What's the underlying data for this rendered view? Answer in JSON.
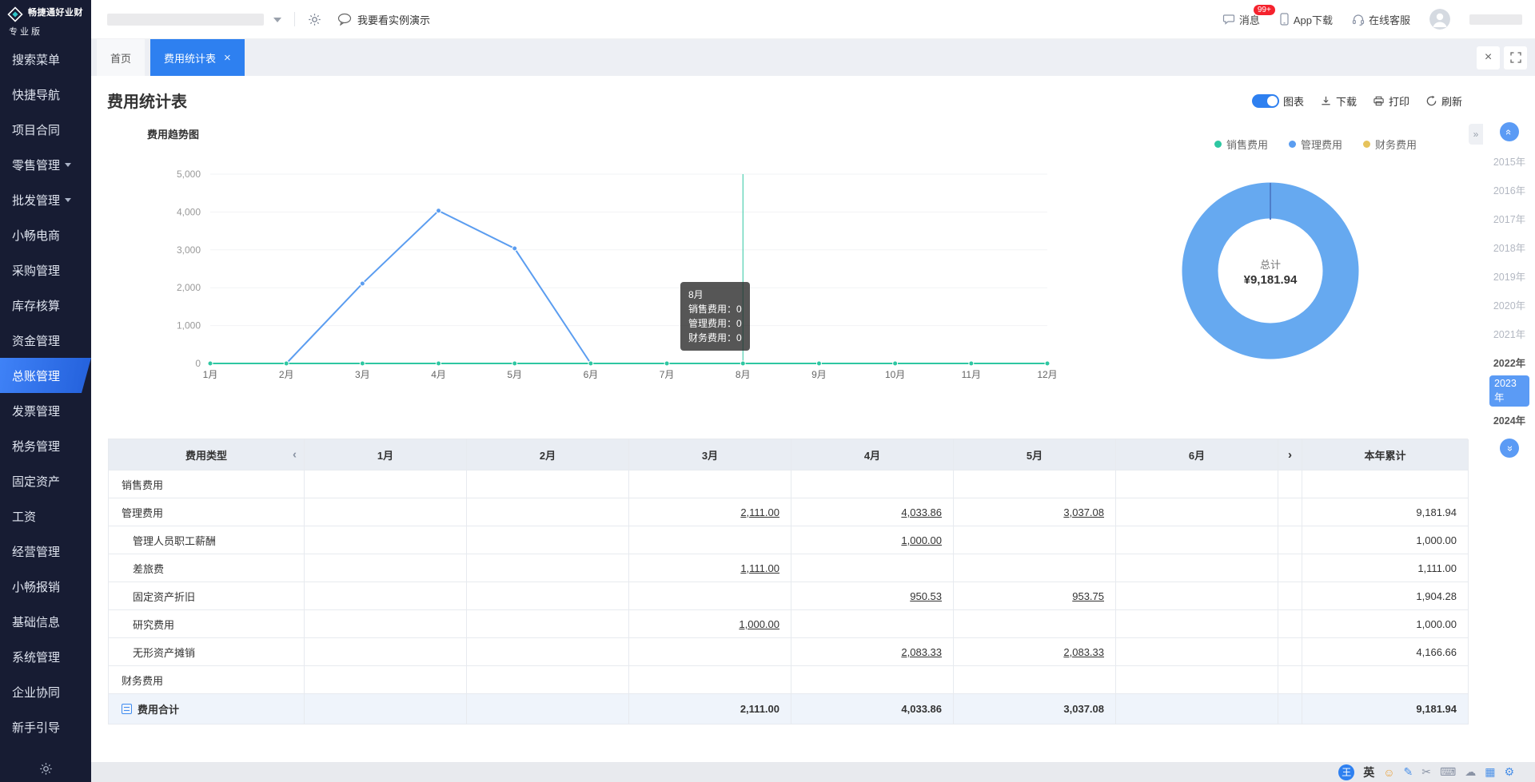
{
  "brand": {
    "name": "畅捷通好业财",
    "edition": "专业版"
  },
  "colors": {
    "accent": "#2E80F0",
    "sidebar_bg": "#171C33",
    "sidebar_active": "#2E6BE5",
    "series_green": "#2EC7A2",
    "series_blue": "#5B9DF0",
    "series_yellow": "#E6C35C",
    "donut_blue": "#66A9F0",
    "badge_red": "#F5222D",
    "year_active": "#5B9BF5"
  },
  "sidebar": {
    "items": [
      {
        "key": "search-menu",
        "label": "搜索菜单"
      },
      {
        "key": "quick-nav",
        "label": "快捷导航"
      },
      {
        "key": "project-contract",
        "label": "项目合同"
      },
      {
        "key": "retail",
        "label": "零售管理",
        "has_dropdown": true
      },
      {
        "key": "wholesale",
        "label": "批发管理",
        "has_dropdown": true
      },
      {
        "key": "ecommerce",
        "label": "小畅电商"
      },
      {
        "key": "purchase",
        "label": "采购管理"
      },
      {
        "key": "inventory",
        "label": "库存核算"
      },
      {
        "key": "funds",
        "label": "资金管理"
      },
      {
        "key": "general-ledger",
        "label": "总账管理",
        "active": true
      },
      {
        "key": "invoice",
        "label": "发票管理"
      },
      {
        "key": "tax",
        "label": "税务管理"
      },
      {
        "key": "fixed-assets",
        "label": "固定资产"
      },
      {
        "key": "payroll",
        "label": "工资"
      },
      {
        "key": "operations",
        "label": "经营管理"
      },
      {
        "key": "expense",
        "label": "小畅报销"
      },
      {
        "key": "base-info",
        "label": "基础信息"
      },
      {
        "key": "system",
        "label": "系统管理"
      },
      {
        "key": "collaboration",
        "label": "企业协同"
      },
      {
        "key": "guide",
        "label": "新手引导"
      }
    ]
  },
  "topbar": {
    "demo": "我要看实例演示",
    "messages": "消息",
    "badge": "99+",
    "app_download": "App下载",
    "online_support": "在线客服"
  },
  "tabs": {
    "home": "首页",
    "report": "费用统计表"
  },
  "report": {
    "title": "费用统计表"
  },
  "toolbar": {
    "chart_toggle": "图表",
    "download": "下载",
    "print": "打印",
    "refresh": "刷新"
  },
  "chart_data": [
    {
      "type": "line",
      "title": "费用趋势图",
      "x": [
        "1月",
        "2月",
        "3月",
        "4月",
        "5月",
        "6月",
        "7月",
        "8月",
        "9月",
        "10月",
        "11月",
        "12月"
      ],
      "ylim": [
        0,
        5000
      ],
      "yticks": [
        0,
        1000,
        2000,
        3000,
        4000,
        5000
      ],
      "legend_position": "top-right",
      "series": [
        {
          "key": "sales",
          "name": "销售费用",
          "color": "#2EC7A2",
          "values": [
            0,
            0,
            0,
            0,
            0,
            0,
            0,
            0,
            0,
            0,
            0,
            0
          ]
        },
        {
          "key": "admin",
          "name": "管理费用",
          "color": "#5B9DF0",
          "values": [
            null,
            0,
            2111.0,
            4033.86,
            3037.08,
            0,
            null,
            null,
            null,
            null,
            null,
            null
          ]
        },
        {
          "key": "finance",
          "name": "财务费用",
          "color": "#E6C35C",
          "values": [
            0,
            0,
            0,
            0,
            0,
            0,
            0,
            0,
            0,
            0,
            0,
            0
          ]
        }
      ],
      "tooltip": {
        "x_index": 7,
        "month": "8月",
        "lines": [
          "销售费用：0",
          "管理费用：0",
          "财务费用：0"
        ]
      }
    },
    {
      "type": "donut",
      "center_label": "总计",
      "center_value": "¥9,181.94",
      "series": [
        {
          "key": "admin",
          "name": "管理费用",
          "value": 9181.94,
          "color": "#66A9F0"
        }
      ]
    }
  ],
  "year_panel": {
    "years": [
      {
        "label": "2015年"
      },
      {
        "label": "2016年"
      },
      {
        "label": "2017年"
      },
      {
        "label": "2018年"
      },
      {
        "label": "2019年"
      },
      {
        "label": "2020年"
      },
      {
        "label": "2021年"
      },
      {
        "label": "2022年",
        "emphasis": true
      },
      {
        "label": "2023年",
        "active": true
      },
      {
        "label": "2024年",
        "emphasis": true
      }
    ]
  },
  "table": {
    "columns": [
      "费用类型",
      "1月",
      "2月",
      "3月",
      "4月",
      "5月",
      "6月",
      "本年累计"
    ],
    "rows": [
      {
        "name": "销售费用",
        "indent": false,
        "values": [
          "",
          "",
          "",
          "",
          "",
          "",
          ""
        ]
      },
      {
        "name": "管理费用",
        "indent": false,
        "values": [
          "",
          "",
          "2,111.00",
          "4,033.86",
          "3,037.08",
          "",
          "9,181.94"
        ]
      },
      {
        "name": "管理人员职工薪酬",
        "indent": true,
        "values": [
          "",
          "",
          "",
          "1,000.00",
          "",
          "",
          "1,000.00"
        ]
      },
      {
        "name": "差旅费",
        "indent": true,
        "values": [
          "",
          "",
          "1,111.00",
          "",
          "",
          "",
          "1,111.00"
        ]
      },
      {
        "name": "固定资产折旧",
        "indent": true,
        "values": [
          "",
          "",
          "",
          "950.53",
          "953.75",
          "",
          "1,904.28"
        ]
      },
      {
        "name": "研究费用",
        "indent": true,
        "values": [
          "",
          "",
          "1,000.00",
          "",
          "",
          "",
          "1,000.00"
        ]
      },
      {
        "name": "无形资产摊销",
        "indent": true,
        "values": [
          "",
          "",
          "",
          "2,083.33",
          "2,083.33",
          "",
          "4,166.66"
        ]
      },
      {
        "name": "财务费用",
        "indent": false,
        "values": [
          "",
          "",
          "",
          "",
          "",
          "",
          ""
        ]
      }
    ],
    "total_row": {
      "name": "费用合计",
      "values": [
        "",
        "",
        "2,111.00",
        "4,033.86",
        "3,037.08",
        "",
        "9,181.94"
      ]
    }
  },
  "ime": {
    "logo": "王",
    "lang": "英",
    "icons": [
      {
        "name": "emoji-icon",
        "glyph": "☺",
        "color": "#E8A23D"
      },
      {
        "name": "pen-icon",
        "glyph": "✎",
        "color": "#4A90E8"
      },
      {
        "name": "scissors-icon",
        "glyph": "✂",
        "color": "#8A93A5"
      },
      {
        "name": "keyboard-icon",
        "glyph": "⌨",
        "color": "#8A93A5"
      },
      {
        "name": "cloud-icon",
        "glyph": "☁",
        "color": "#8A93A5"
      },
      {
        "name": "grid-icon",
        "glyph": "▦",
        "color": "#4A90E8"
      },
      {
        "name": "wrench-icon",
        "glyph": "⚙",
        "color": "#4A90E8"
      }
    ]
  }
}
